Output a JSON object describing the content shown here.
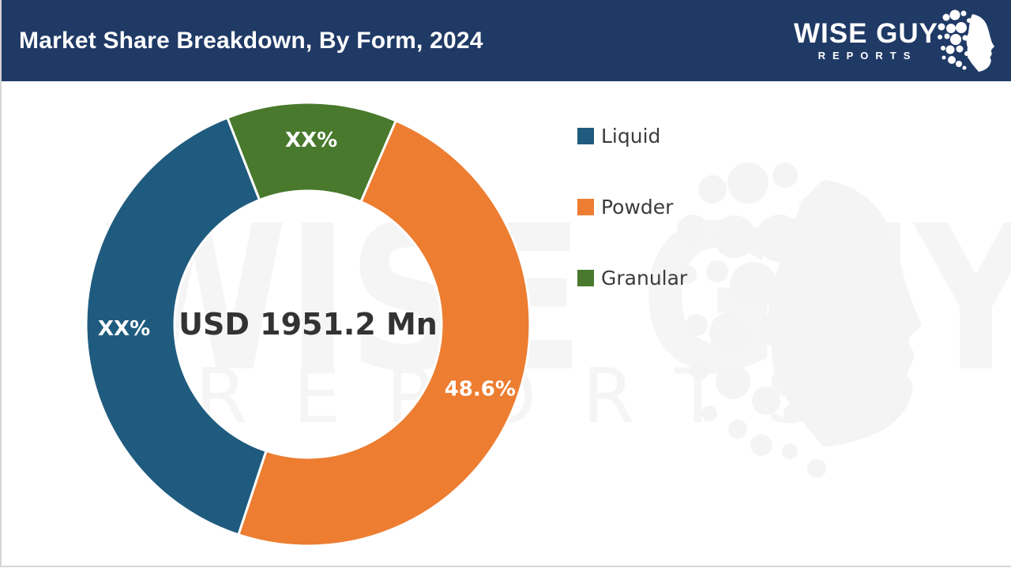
{
  "header": {
    "title": "Market Share Breakdown, By Form, 2024",
    "logo": {
      "line1": "WISE GUY",
      "line2": "REPORTS"
    },
    "bg_color": "#203A66"
  },
  "watermark": {
    "line1": "WISE GUY",
    "line2": "REPORTS"
  },
  "chart_data": {
    "type": "pie",
    "subtype": "donut",
    "title": "Market Share Breakdown, By Form, 2024",
    "center_label": "USD 1951.2 Mn",
    "donut_hole_ratio": 0.6,
    "legend_position": "right",
    "slices": [
      {
        "name": "Liquid",
        "value_pct": 39.0,
        "displayed_label": "XX%",
        "color": "#1F5B7E",
        "value_is_estimated": true
      },
      {
        "name": "Powder",
        "value_pct": 48.6,
        "displayed_label": "48.6%",
        "color": "#ED7D31",
        "value_is_estimated": false
      },
      {
        "name": "Granular",
        "value_pct": 12.4,
        "displayed_label": "XX%",
        "color": "#48792C",
        "value_is_estimated": true
      }
    ],
    "colors": {
      "slice_divider": "#ffffff",
      "slice_label_text": "#ffffff",
      "center_label_text": "#333333",
      "legend_text": "#3b3b3b",
      "watermark": "#f5f5f6"
    }
  }
}
